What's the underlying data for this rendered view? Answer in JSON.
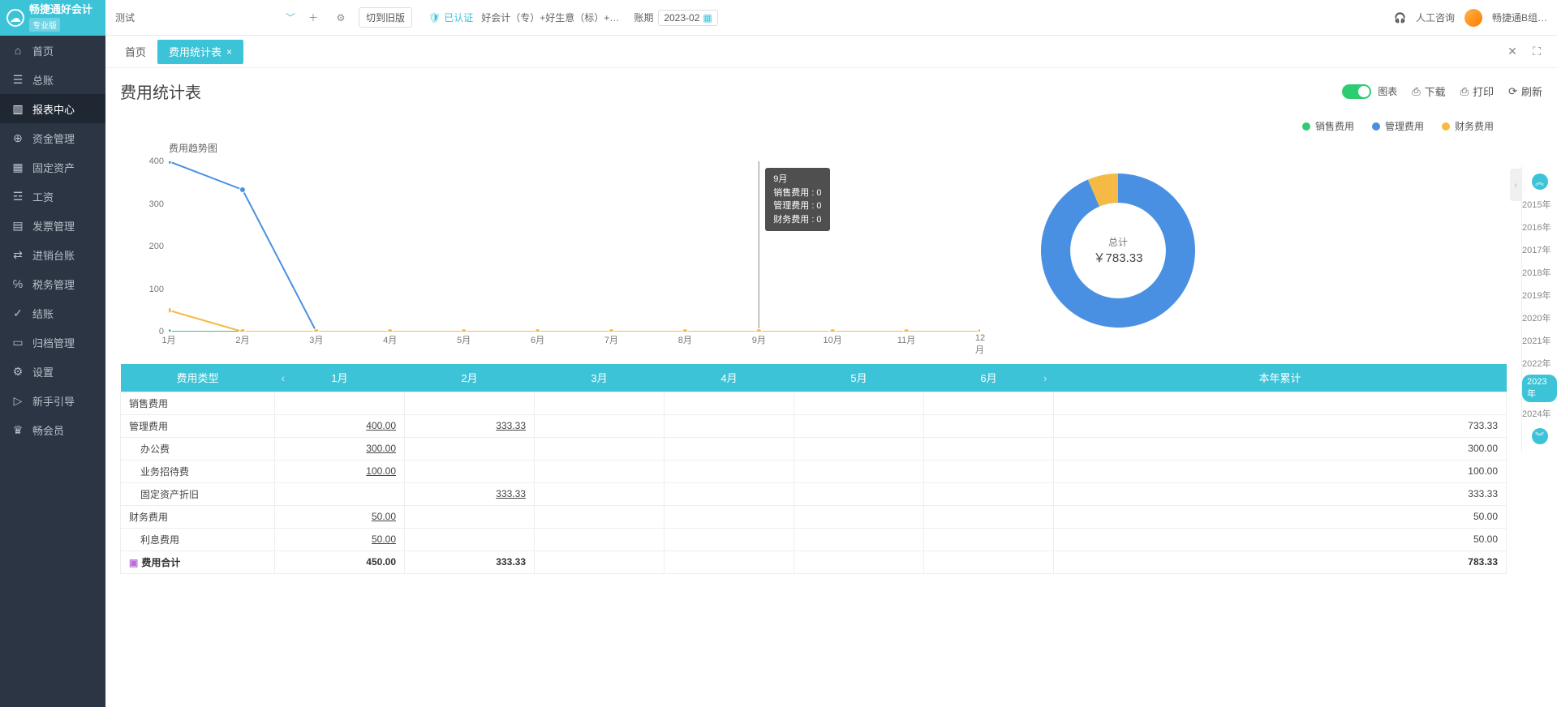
{
  "brand": {
    "name": "畅捷通好会计",
    "edition": "专业版"
  },
  "sidebar": {
    "items": [
      {
        "icon": "⌂",
        "label": "首页"
      },
      {
        "icon": "☰",
        "label": "总账"
      },
      {
        "icon": "▥",
        "label": "报表中心",
        "active": true
      },
      {
        "icon": "⊕",
        "label": "资金管理"
      },
      {
        "icon": "▦",
        "label": "固定资产"
      },
      {
        "icon": "☲",
        "label": "工资"
      },
      {
        "icon": "▤",
        "label": "发票管理"
      },
      {
        "icon": "⇄",
        "label": "进销台账"
      },
      {
        "icon": "℅",
        "label": "税务管理"
      },
      {
        "icon": "✓",
        "label": "结账"
      },
      {
        "icon": "▭",
        "label": "归档管理"
      },
      {
        "icon": "⚙",
        "label": "设置"
      },
      {
        "icon": "▷",
        "label": "新手引导"
      },
      {
        "icon": "♛",
        "label": "畅会员"
      }
    ]
  },
  "topbar": {
    "company": "测试",
    "old_version_btn": "切到旧版",
    "certified": "已认证",
    "product_hint": "好会计（专）+好生意（标）+…",
    "period_label": "账期",
    "period_value": "2023-02",
    "consult": "人工咨询",
    "user": "畅捷通B组…"
  },
  "tabs": {
    "home": "首页",
    "active": "费用统计表"
  },
  "page": {
    "title": "费用统计表",
    "chart_toggle_label": "图表",
    "download": "下载",
    "print": "打印",
    "refresh": "刷新"
  },
  "legend": {
    "sales": {
      "label": "销售费用",
      "color": "#2ecc71"
    },
    "admin": {
      "label": "管理费用",
      "color": "#4a90e2"
    },
    "finance": {
      "label": "财务费用",
      "color": "#f5b945"
    }
  },
  "line_chart": {
    "title": "费用趋势图",
    "type": "line",
    "background_color": "#ffffff",
    "y_ticks": [
      0,
      100,
      200,
      300,
      400
    ],
    "ylim": [
      0,
      400
    ],
    "x_labels": [
      "1月",
      "2月",
      "3月",
      "4月",
      "5月",
      "6月",
      "7月",
      "8月",
      "9月",
      "10月",
      "11月",
      "12月"
    ],
    "series": {
      "sales": {
        "color": "#2ecc71",
        "values": [
          0,
          0,
          0,
          0,
          0,
          0,
          0,
          0,
          0,
          0,
          0,
          0
        ],
        "marker": "circle"
      },
      "admin": {
        "color": "#4a90e2",
        "values": [
          400,
          333.33,
          0,
          0,
          0,
          0,
          0,
          0,
          0,
          0,
          0,
          0
        ],
        "marker": "circle"
      },
      "finance": {
        "color": "#f5b945",
        "values": [
          50,
          0,
          0,
          0,
          0,
          0,
          0,
          0,
          0,
          0,
          0,
          0
        ],
        "marker": "circle"
      }
    },
    "tooltip": {
      "month": "9月",
      "line1": "销售费用 : 0",
      "line2": "管理费用 : 0",
      "line3": "财务费用 : 0",
      "x_index": 8
    },
    "axis_color": "#cccccc",
    "label_fontsize": 11
  },
  "donut": {
    "type": "donut",
    "center_label": "总计",
    "center_value": "￥783.33",
    "slices": [
      {
        "label": "管理费用",
        "value": 733.33,
        "color": "#4a90e2"
      },
      {
        "label": "财务费用",
        "value": 50.0,
        "color": "#f5b945"
      },
      {
        "label": "销售费用",
        "value": 0,
        "color": "#2ecc71"
      }
    ],
    "inner_radius_pct": 62
  },
  "year_rail": {
    "years": [
      "2015年",
      "2016年",
      "2017年",
      "2018年",
      "2019年",
      "2020年",
      "2021年",
      "2022年",
      "2023年",
      "2024年"
    ],
    "active": "2023年"
  },
  "table": {
    "columns": [
      "费用类型",
      "1月",
      "2月",
      "3月",
      "4月",
      "5月",
      "6月",
      "本年累计"
    ],
    "rows": [
      {
        "name": "销售费用",
        "indent": 0,
        "v": [
          "",
          "",
          "",
          "",
          "",
          ""
        ],
        "total": ""
      },
      {
        "name": "管理费用",
        "indent": 0,
        "v": [
          "400.00",
          "333.33",
          "",
          "",
          "",
          ""
        ],
        "total": "733.33",
        "u": true
      },
      {
        "name": "办公费",
        "indent": 1,
        "v": [
          "300.00",
          "",
          "",
          "",
          "",
          ""
        ],
        "total": "300.00",
        "u": true
      },
      {
        "name": "业务招待费",
        "indent": 1,
        "v": [
          "100.00",
          "",
          "",
          "",
          "",
          ""
        ],
        "total": "100.00",
        "u": true
      },
      {
        "name": "固定资产折旧",
        "indent": 1,
        "v": [
          "",
          "333.33",
          "",
          "",
          "",
          ""
        ],
        "total": "333.33",
        "u": true
      },
      {
        "name": "财务费用",
        "indent": 0,
        "v": [
          "50.00",
          "",
          "",
          "",
          "",
          ""
        ],
        "total": "50.00",
        "u": true
      },
      {
        "name": "利息费用",
        "indent": 1,
        "v": [
          "50.00",
          "",
          "",
          "",
          "",
          ""
        ],
        "total": "50.00",
        "u": true
      }
    ],
    "footer": {
      "name": "费用合计",
      "v": [
        "450.00",
        "333.33",
        "",
        "",
        "",
        ""
      ],
      "total": "783.33"
    }
  }
}
